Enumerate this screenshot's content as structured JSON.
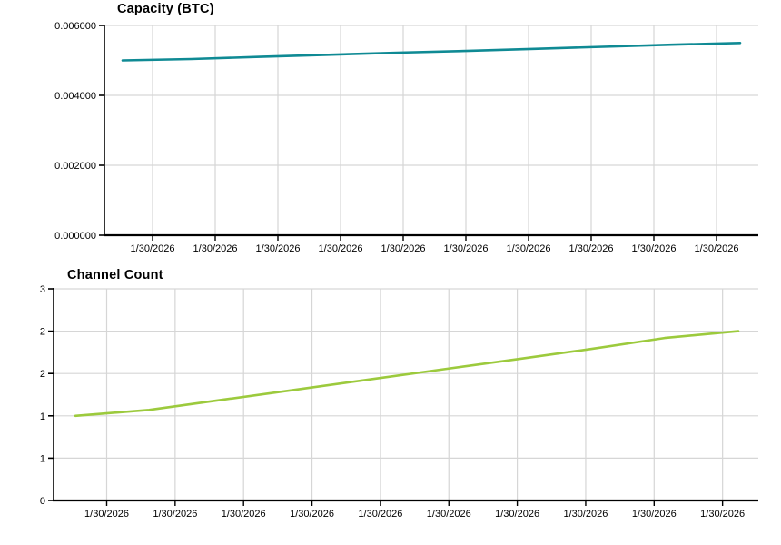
{
  "colors": {
    "background": "#ffffff",
    "grid": "#d6d6d6",
    "axis": "#000000",
    "text": "#000000"
  },
  "chart_data": [
    {
      "type": "line",
      "title": "Capacity (BTC)",
      "xlabel": "",
      "ylabel": "",
      "ylim": [
        0,
        0.006
      ],
      "grid": true,
      "legend": "none",
      "y_tick_labels": [
        "0.006000",
        "0.004000",
        "0.002000",
        "0.000000"
      ],
      "x_tick_labels": [
        "1/30/2026",
        "1/30/2026",
        "1/30/2026",
        "1/30/2026",
        "1/30/2026",
        "1/30/2026",
        "1/30/2026",
        "1/30/2026",
        "1/30/2026",
        "1/30/2026"
      ],
      "series": [
        {
          "name": "capacity_btc",
          "color": "#0f8a94",
          "values": [
            0.005,
            0.00504,
            0.0051,
            0.00516,
            0.00522,
            0.00527,
            0.00533,
            0.00539,
            0.00545,
            0.0055
          ]
        }
      ]
    },
    {
      "type": "line",
      "title": "Channel Count",
      "xlabel": "",
      "ylabel": "",
      "ylim": [
        0,
        3
      ],
      "grid": true,
      "legend": "none",
      "y_tick_labels": [
        "3",
        "2",
        "2",
        "1",
        "1",
        "0"
      ],
      "x_tick_labels": [
        "1/30/2026",
        "1/30/2026",
        "1/30/2026",
        "1/30/2026",
        "1/30/2026",
        "1/30/2026",
        "1/30/2026",
        "1/30/2026",
        "1/30/2026",
        "1/30/2026"
      ],
      "series": [
        {
          "name": "channel_count",
          "color": "#9cca3d",
          "values": [
            1,
            1.07,
            1.19,
            1.31,
            1.43,
            1.55,
            1.67,
            1.79,
            1.92,
            2
          ]
        }
      ]
    }
  ]
}
